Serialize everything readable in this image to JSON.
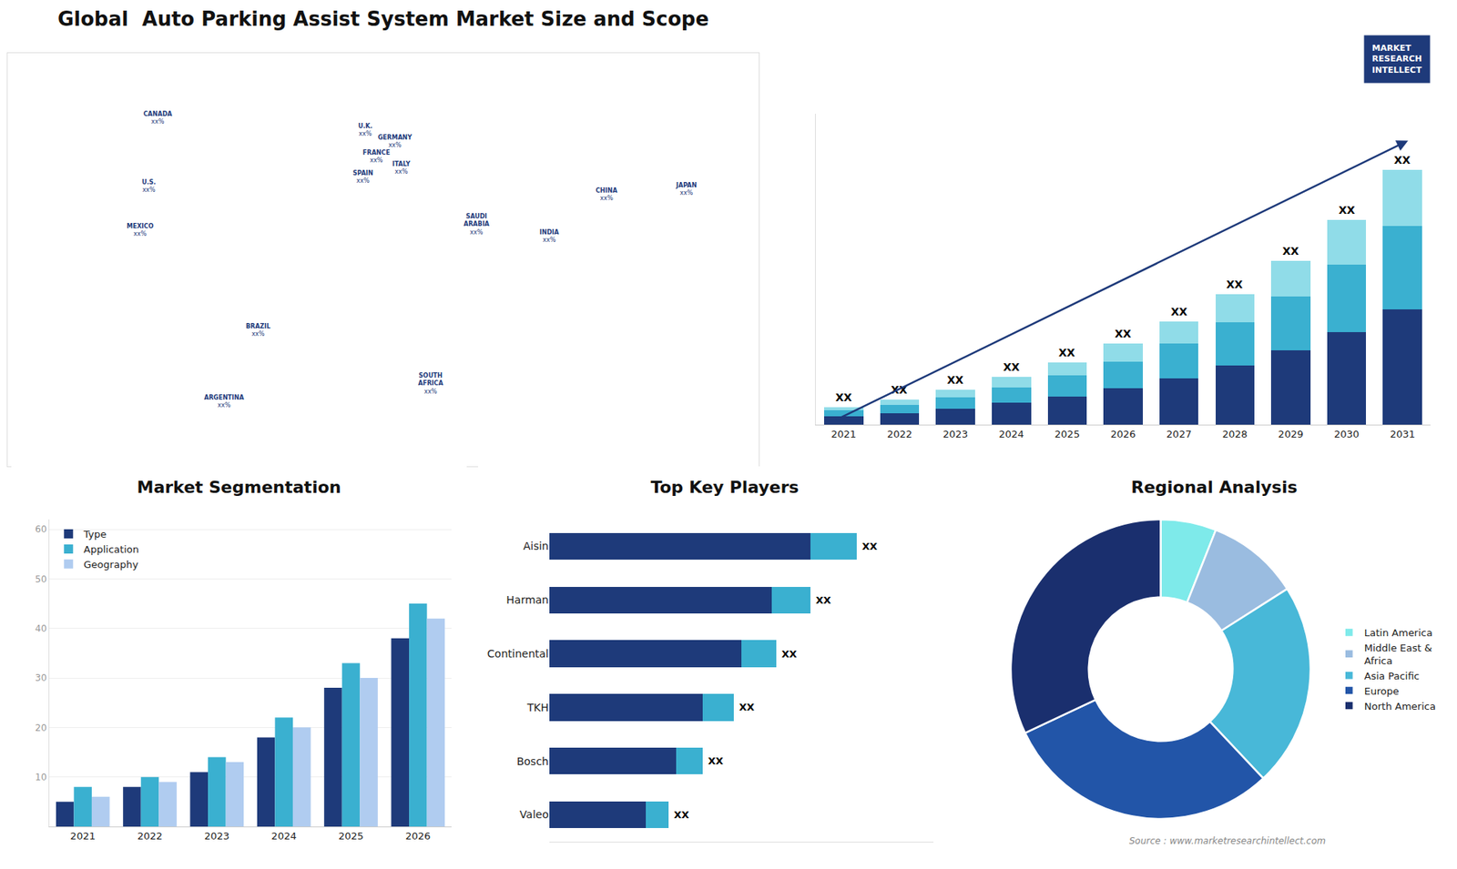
{
  "chart_data": [
    {
      "type": "map",
      "title": "Global  Auto Parking Assist System Market Size and Scope",
      "xlim": [
        -160,
        170
      ],
      "ylim": [
        -58,
        82
      ],
      "tick_labels": false,
      "grid": false,
      "color": "#1e3a7a",
      "annotations": [
        {
          "text": "U.S.\nxx%",
          "x": -98,
          "y": 37
        },
        {
          "text": "CANADA\nxx%",
          "x": -94,
          "y": 60
        },
        {
          "text": "MEXICO\nxx%",
          "x": -102,
          "y": 22
        },
        {
          "text": "BRAZIL\nxx%",
          "x": -50,
          "y": -12
        },
        {
          "text": "ARGENTINA\nxx%",
          "x": -65,
          "y": -36
        },
        {
          "text": "U.K.\nxx%",
          "x": -3,
          "y": 56
        },
        {
          "text": "FRANCE\nxx%",
          "x": 2,
          "y": 47
        },
        {
          "text": "SPAIN\nxx%",
          "x": -4,
          "y": 40
        },
        {
          "text": "GERMANY\nxx%",
          "x": 10,
          "y": 52
        },
        {
          "text": "ITALY\nxx%",
          "x": 13,
          "y": 43
        },
        {
          "text": "SAUDI\nARABIA\nxx%",
          "x": 46,
          "y": 24
        },
        {
          "text": "SOUTH\nAFRICA\nxx%",
          "x": 26,
          "y": -30
        },
        {
          "text": "CHINA\nxx%",
          "x": 103,
          "y": 34
        },
        {
          "text": "JAPAN\nxx%",
          "x": 138,
          "y": 36
        },
        {
          "text": "INDIA\nxx%",
          "x": 78,
          "y": 20
        }
      ]
    },
    {
      "type": "bar",
      "stacked": true,
      "categories": [
        "2021",
        "2022",
        "2023",
        "2024",
        "2025",
        "2026",
        "2027",
        "2028",
        "2029",
        "2030",
        "2031"
      ],
      "series": [
        {
          "color": "#1e3a7a",
          "values": [
            1.0,
            1.4,
            1.9,
            2.6,
            3.4,
            4.4,
            5.6,
            7.1,
            8.9,
            11.1,
            13.8
          ]
        },
        {
          "color": "#3ab0d0",
          "values": [
            0.7,
            1.0,
            1.4,
            1.9,
            2.5,
            3.2,
            4.1,
            5.2,
            6.5,
            8.1,
            10.1
          ]
        },
        {
          "color": "#90dce8",
          "values": [
            0.4,
            0.6,
            0.9,
            1.2,
            1.6,
            2.1,
            2.7,
            3.4,
            4.3,
            5.4,
            6.7
          ]
        }
      ],
      "ylim": [
        0,
        37.332
      ],
      "tick_labels": "x",
      "grid": false,
      "annotations": [
        {
          "text": "XX",
          "x": 0
        },
        {
          "text": "XX",
          "x": 1
        },
        {
          "text": "XX",
          "x": 2
        },
        {
          "text": "XX",
          "x": 3
        },
        {
          "text": "XX",
          "x": 4
        },
        {
          "text": "XX",
          "x": 5
        },
        {
          "text": "XX",
          "x": 6
        },
        {
          "text": "XX",
          "x": 7
        },
        {
          "text": "XX",
          "x": 8
        },
        {
          "text": "XX",
          "x": 9
        },
        {
          "text": "XX",
          "x": 10
        },
        {
          "text": "MARKET\nRESEARCH\nINTELLECT"
        }
      ]
    },
    {
      "type": "bar",
      "title": "Market Segmentation",
      "categories": [
        "2021",
        "2022",
        "2023",
        "2024",
        "2025",
        "2026"
      ],
      "series": [
        {
          "name": "Type",
          "color": "#1e3a7a",
          "values": [
            5,
            8,
            11,
            18,
            28,
            38
          ]
        },
        {
          "name": "Application",
          "color": "#3ab0d0",
          "values": [
            8,
            10,
            14,
            22,
            33,
            45
          ]
        },
        {
          "name": "Geography",
          "color": "#b0ccf0",
          "values": [
            6,
            9,
            13,
            20,
            30,
            42
          ]
        }
      ],
      "ylim": [
        0,
        62
      ],
      "yticks": [
        10,
        20,
        30,
        40,
        50,
        60
      ],
      "grid": true,
      "legend": "upper left"
    },
    {
      "type": "bar",
      "orientation": "horizontal",
      "stacked": true,
      "title": "Top Key Players",
      "categories": [
        "Aisin",
        "Harman",
        "Continental",
        "TKH",
        "Bosch",
        "Valeo"
      ],
      "series": [
        {
          "color": "#1e3a7a",
          "values": [
            0.68,
            0.58,
            0.5,
            0.4,
            0.33,
            0.25
          ]
        },
        {
          "color": "#3ab0d0",
          "values": [
            0.12,
            0.1,
            0.09,
            0.08,
            0.07,
            0.06
          ]
        }
      ],
      "xlim": [
        0,
        1.0
      ],
      "tick_labels": "y",
      "grid": false,
      "annotations": [
        {
          "text": "XX",
          "y": 0
        },
        {
          "text": "XX",
          "y": 1
        },
        {
          "text": "XX",
          "y": 2
        },
        {
          "text": "XX",
          "y": 3
        },
        {
          "text": "XX",
          "y": 4
        },
        {
          "text": "XX",
          "y": 5
        }
      ]
    },
    {
      "type": "donut",
      "title": "Regional Analysis",
      "categories": [
        "Latin America",
        "Middle East &\nAfrica",
        "Asia Pacific",
        "Europe",
        "North America"
      ],
      "values": [
        6,
        10,
        22,
        30,
        32
      ],
      "colors": [
        "#7eeaea",
        "#9abce0",
        "#48b8d8",
        "#2255a8",
        "#1a2f6e"
      ],
      "legend": "right",
      "annotations": [
        {
          "text": "Source : www.marketresearchintellect.com"
        }
      ]
    }
  ]
}
